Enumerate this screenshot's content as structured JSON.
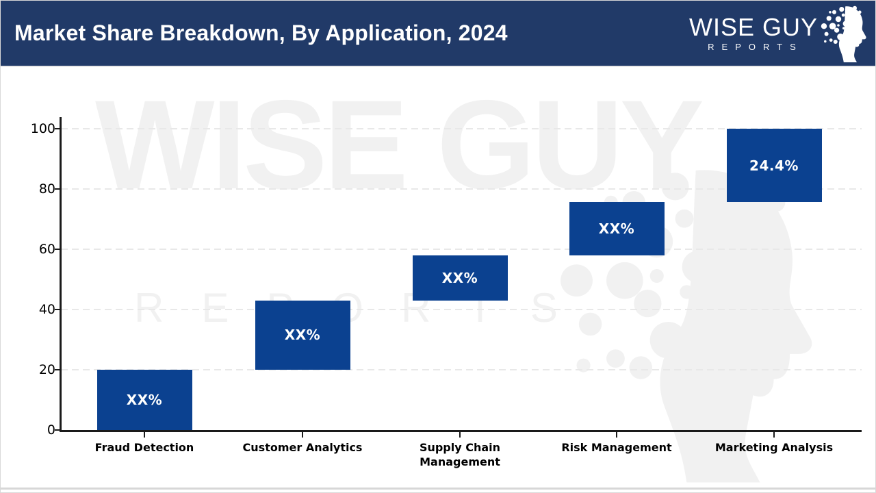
{
  "header": {
    "title": "Market Share Breakdown, By Application, 2024",
    "brand": {
      "line1": "WISE GUY",
      "line2": "REPORTS"
    }
  },
  "watermark": {
    "line1": "WISE GUY",
    "line2": "REPORTS"
  },
  "icons": {
    "brand_face": "head-profile-dots-icon",
    "watermark_face": "head-profile-dots-icon"
  },
  "chart_data": {
    "type": "bar",
    "subtype": "floating-segment-waterfall",
    "title": "Market Share Breakdown, By Application, 2024",
    "xlabel": "",
    "ylabel": "",
    "ylim": [
      0,
      104
    ],
    "y_ticks": [
      0,
      20,
      40,
      60,
      80,
      100
    ],
    "grid": "horizontal-dashed",
    "legend": "none",
    "bar_color": "#0b4190",
    "label_color": "#ffffff",
    "categories": [
      "Fraud Detection",
      "Customer Analytics",
      "Supply Chain Management",
      "Risk Management",
      "Marketing Analysis"
    ],
    "segments": [
      {
        "category": "Fraud Detection",
        "start": 0,
        "end": 20,
        "value": 20,
        "label": "XX%"
      },
      {
        "category": "Customer Analytics",
        "start": 20,
        "end": 43,
        "value": 23,
        "label": "XX%"
      },
      {
        "category": "Supply Chain Management",
        "start": 43,
        "end": 58,
        "value": 15,
        "label": "XX%"
      },
      {
        "category": "Risk Management",
        "start": 58,
        "end": 75.6,
        "value": 17.6,
        "label": "XX%"
      },
      {
        "category": "Marketing Analysis",
        "start": 75.6,
        "end": 100,
        "value": 24.4,
        "label": "24.4%"
      }
    ]
  },
  "colors": {
    "header_bg": "#213a68",
    "bar": "#0b4190",
    "grid": "#e8e8e8",
    "axis": "#1a1a1a",
    "watermark": "#f1f1f1"
  }
}
